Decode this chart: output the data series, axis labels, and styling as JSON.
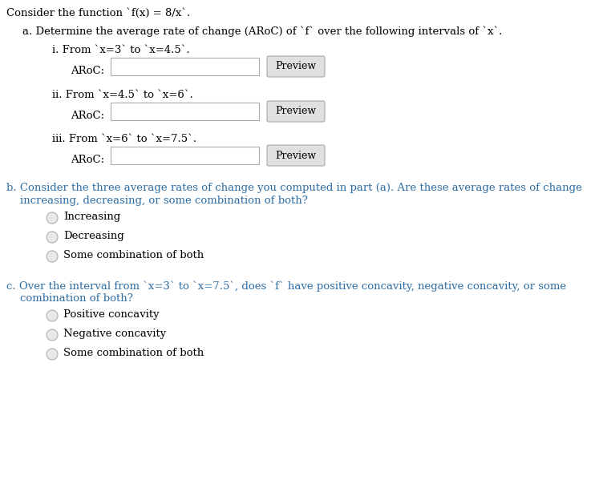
{
  "bg_color": "#ffffff",
  "title_line": "Consider the function `f(x) = 8/x`.",
  "part_a_label": "a. Determine the average rate of change (ARoC) of `f` over the following intervals of `x`.",
  "part_i_label": "i. From `x=3` to `x=4.5`.",
  "part_ii_label": "ii. From `x=4.5` to `x=6`.",
  "part_iii_label": "iii. From `x=6` to `x=7.5`.",
  "aroc_label": "ARoC:",
  "preview_label": "Preview",
  "part_b_line1": "b. Consider the three average rates of change you computed in part (a). Are these average rates of change",
  "part_b_line2": "    increasing, decreasing, or some combination of both?",
  "b_options": [
    "Increasing",
    "Decreasing",
    "Some combination of both"
  ],
  "part_c_line1": "c. Over the interval from `x=3` to `x=7.5`, does `f` have positive concavity, negative concavity, or some",
  "part_c_line2": "    combination of both?",
  "c_options": [
    "Positive concavity",
    "Negative concavity",
    "Some combination of both"
  ],
  "text_color": "#000000",
  "teal_color": "#2e6da4",
  "radio_edge": "#b0b0b0",
  "radio_face": "#e8e8e8",
  "preview_bg": "#e0e0e0",
  "preview_edge": "#aaaaaa",
  "input_edge": "#aaaaaa",
  "font_size": 9.5,
  "font_size_title": 9.5
}
